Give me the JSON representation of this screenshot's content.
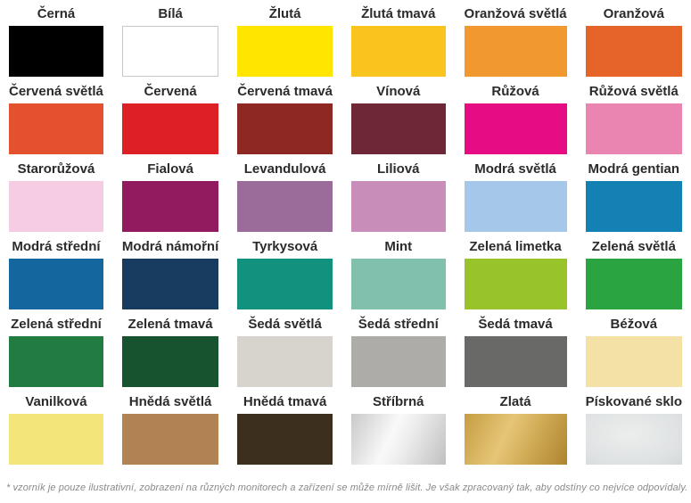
{
  "palette": {
    "swatches": [
      {
        "name": "Černá",
        "color": "#000000"
      },
      {
        "name": "Bílá",
        "color": "#ffffff",
        "border": "#c8c8c8"
      },
      {
        "name": "Žlutá",
        "color": "#ffe500"
      },
      {
        "name": "Žlutá tmavá",
        "color": "#f9c41d"
      },
      {
        "name": "Oranžová světlá",
        "color": "#f1992e"
      },
      {
        "name": "Oranžová",
        "color": "#e66329"
      },
      {
        "name": "Červená světlá",
        "color": "#e4512f"
      },
      {
        "name": "Červená",
        "color": "#dc2026"
      },
      {
        "name": "Červená tmavá",
        "color": "#8d2822"
      },
      {
        "name": "Vínová",
        "color": "#6e2737"
      },
      {
        "name": "Růžová",
        "color": "#e60c84"
      },
      {
        "name": "Růžová světlá",
        "color": "#e985b0"
      },
      {
        "name": "Starorůžová",
        "color": "#f5cce1"
      },
      {
        "name": "Fialová",
        "color": "#911b5e"
      },
      {
        "name": "Levandulová",
        "color": "#9b6c99"
      },
      {
        "name": "Liliová",
        "color": "#c88db9"
      },
      {
        "name": "Modrá světlá",
        "color": "#a4c7ea"
      },
      {
        "name": "Modrá gentian",
        "color": "#1481b4"
      },
      {
        "name": "Modrá střední",
        "color": "#14679e"
      },
      {
        "name": "Modrá námořní",
        "color": "#173c5f"
      },
      {
        "name": "Tyrkysová",
        "color": "#12917f"
      },
      {
        "name": "Mint",
        "color": "#82c0ae"
      },
      {
        "name": "Zelená limetka",
        "color": "#99c32a"
      },
      {
        "name": "Zelená světlá",
        "color": "#29a441"
      },
      {
        "name": "Zelená střední",
        "color": "#207c40"
      },
      {
        "name": "Zelená tmavá",
        "color": "#16532e"
      },
      {
        "name": "Šedá světlá",
        "color": "#d7d4cd"
      },
      {
        "name": "Šedá střední",
        "color": "#aeaca9"
      },
      {
        "name": "Šedá tmavá",
        "color": "#696a68"
      },
      {
        "name": "Béžová",
        "color": "#f4e1a5"
      },
      {
        "name": "Vanilková",
        "color": "#f3e579"
      },
      {
        "name": "Hnědá světlá",
        "color": "#b18252"
      },
      {
        "name": "Hnědá tmavá",
        "color": "#3c2f1e"
      },
      {
        "name": "Stříbrná",
        "gradient": {
          "type": "linear",
          "angle": 115,
          "stops": [
            {
              "c": "#c9c9c9",
              "p": 0
            },
            {
              "c": "#f9f9f9",
              "p": 42
            },
            {
              "c": "#ededed",
              "p": 58
            },
            {
              "c": "#c0c0c0",
              "p": 100
            }
          ]
        }
      },
      {
        "name": "Zlatá",
        "gradient": {
          "type": "linear",
          "angle": 115,
          "stops": [
            {
              "c": "#c69d42",
              "p": 0
            },
            {
              "c": "#e5c677",
              "p": 40
            },
            {
              "c": "#cba54e",
              "p": 70
            },
            {
              "c": "#ae8330",
              "p": 100
            }
          ]
        }
      },
      {
        "name": "Pískované sklo",
        "gradient": {
          "type": "radial",
          "at": "45% 40%",
          "stops": [
            {
              "c": "#eceeee",
              "p": 0
            },
            {
              "c": "#dfe2e2",
              "p": 70
            },
            {
              "c": "#d5d9d9",
              "p": 100
            }
          ]
        }
      }
    ]
  },
  "footer": {
    "note": "* vzorník je pouze ilustrativní, zobrazení na různých monitorech a zařízení se může mírně lišit. Je však zpracovaný tak, aby odstíny co nejvíce odpovídaly."
  }
}
